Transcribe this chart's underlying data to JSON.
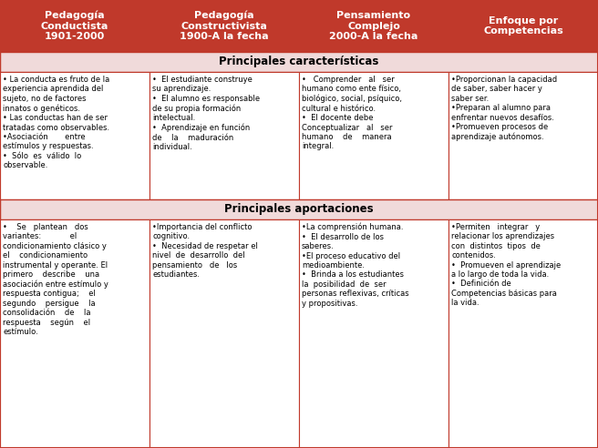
{
  "header_bg": "#c0392b",
  "header_text_color": "#ffffff",
  "subheader_bg": "#f0dada",
  "subheader_text_color": "#000000",
  "cell_bg": "#ffffff",
  "cell_text_color": "#000000",
  "border_color": "#c0392b",
  "headers": [
    "Pedagogía\nConductista\n1901-2000",
    "Pedagogía\nConstructivista\n1900-A la fecha",
    "Pensamiento\nComplejo\n2000-A la fecha",
    "Enfoque por\nCompetencias"
  ],
  "section1_title": "Principales características",
  "section2_title": "Principales aportaciones",
  "section1_content": [
    "• La conducta es fruto de la\nexperiencia aprendida del\nsujeto, no de factores\ninnatos o genéticos.\n• Las conductas han de ser\ntratadas como observables.\n•Asociación       entre\nestímulos y respuestas.\n•  Sólo  es  válido  lo\nobservable.",
    "•  El estudiante construye\nsu aprendizaje.\n•  El alumno es responsable\nde su propia formación\nintelectual.\n•  Aprendizaje en función\nde    la    maduración\nindividual.",
    "•   Comprender   al   ser\nhumano como ente físico,\nbiológico, social, psíquico,\ncultural e histórico.\n•  El docente debe\nConceptualizar   al   ser\nhumano    de    manera\nintegral.",
    "•Proporcionan la capacidad\nde saber, saber hacer y\nsaber ser.\n•Preparan al alumno para\nenfrentar nuevos desafíos.\n•Promueven procesos de\naprendizaje autónomos."
  ],
  "section2_content": [
    "•    Se   plantean   dos\nvariantes:            el\ncondicionamiento clásico y\nel    condicionamiento\ninstrumental y operante. El\nprimero    describe    una\nasociación entre estímulo y\nrespuesta contigua;    el\nsegundo    persigue    la\nconsolidación    de    la\nrespuesta    según    el\nestímulo.",
    "•Importancia del conflicto\ncognitivo.\n•  Necesidad de respetar el\nnivel  de  desarrollo  del\npensamiento   de   los\nestudiantes.",
    "•La comprensión humana.\n•  El desarrollo de los\nsaberes.\n•El proceso educativo del\nmedioambiente.\n•  Brinda a los estudiantes\nla  posibilidad  de  ser\npersonas reflexivas, críticas\ny propositivas.",
    "•Permiten   integrar   y\nrelacionar los aprendizajes\ncon  distintos  tipos  de\ncontenidos.\n•  Promueven el aprendizaje\na lo largo de toda la vida.\n•  Definición de\nCompetencias básicas para\nla vida."
  ],
  "fig_width": 6.56,
  "fig_height": 4.92,
  "dpi": 100
}
